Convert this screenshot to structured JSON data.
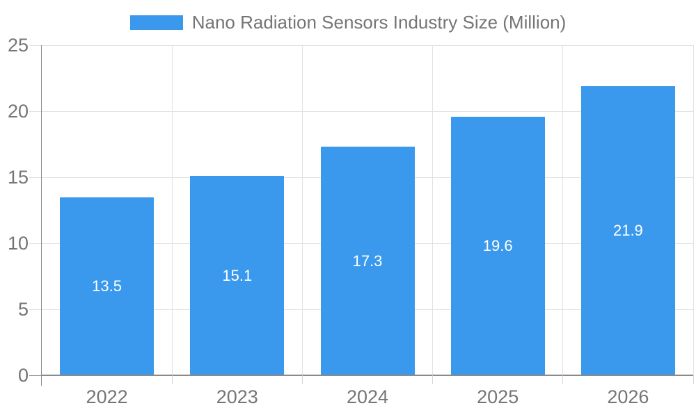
{
  "legend": {
    "label": "Nano Radiation Sensors Industry Size (Million)"
  },
  "chart_data": {
    "type": "bar",
    "title": "Nano Radiation Sensors Industry Size (Million)",
    "categories": [
      "2022",
      "2023",
      "2024",
      "2025",
      "2026"
    ],
    "values": [
      13.5,
      15.1,
      17.3,
      19.6,
      21.9
    ],
    "xlabel": "",
    "ylabel": "",
    "ylim": [
      0,
      25
    ],
    "yticks": [
      0,
      5,
      10,
      15,
      20,
      25
    ],
    "grid": true,
    "legend_position": "top-center",
    "colors": {
      "bar": "#3A99EC",
      "value_label": "#ffffff",
      "axis_text": "#757575",
      "axis_line": "#8a8a8a",
      "gridline": "#e2e2e2"
    }
  }
}
